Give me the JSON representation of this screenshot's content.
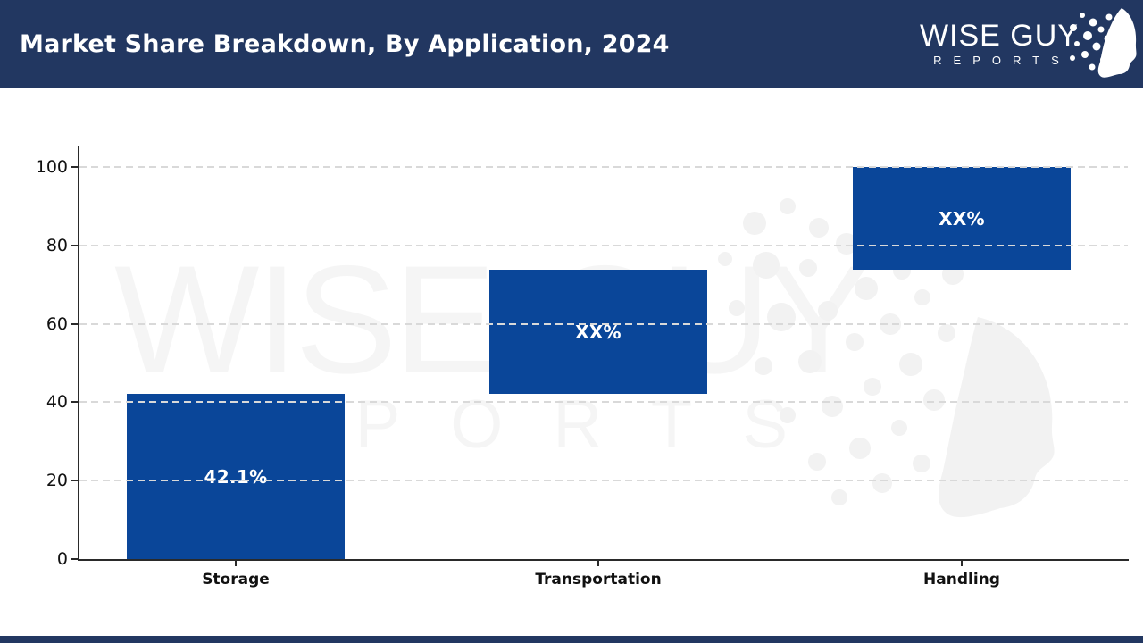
{
  "header": {
    "title": "Market Share Breakdown, By Application, 2024",
    "logo": {
      "main": "WISE GUY",
      "sub": "REPORTS"
    }
  },
  "watermark": {
    "line1": "WISE GUY",
    "line2": "REPORTS"
  },
  "colors": {
    "header_bg": "#223761",
    "footer_bg": "#223761",
    "bar": "#0a4699",
    "grid": "#d9d9d9",
    "axis": "#2a2a2a",
    "watermark": "#f5f5f5",
    "title_text": "#ffffff",
    "bar_label_text": "#ffffff"
  },
  "chart_data": {
    "type": "bar",
    "subtype": "waterfall-style floating bars",
    "title": "Market Share Breakdown, By Application, 2024",
    "categories": [
      "Storage",
      "Transportation",
      "Handling"
    ],
    "segments": [
      {
        "category": "Storage",
        "start": 0,
        "end": 42.1,
        "label": "42.1%"
      },
      {
        "category": "Transportation",
        "start": 42.1,
        "end": 73.8,
        "label": "XX%"
      },
      {
        "category": "Handling",
        "start": 73.8,
        "end": 100,
        "label": "XX%"
      }
    ],
    "yticks": [
      0,
      20,
      40,
      60,
      80,
      100
    ],
    "ylim": [
      0,
      106
    ],
    "xlabel": "",
    "ylabel": "",
    "grid": "horizontal dashed lines drawn over bars",
    "legend": "none",
    "bar_color": "#0a4699",
    "bar_label_color": "#ffffff"
  }
}
